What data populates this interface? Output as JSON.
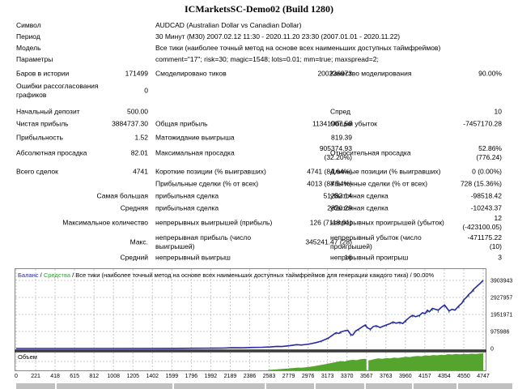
{
  "title": "ICMarketsSC-Demo02 (Build 1280)",
  "info_rows": [
    {
      "label": "Символ",
      "value": "AUDCAD (Australian Dollar vs Canadian Dollar)"
    },
    {
      "label": "Период",
      "value": "30 Минут (M30) 2007.02.12 11:30 - 2020.11.20 23:30 (2007.01.01 - 2020.11.22)"
    },
    {
      "label": "Модель",
      "value": "Все тики (наиболее точный метод на основе всех наименьших доступных таймфреймов)"
    },
    {
      "label": "Параметры",
      "value": "comment=\"17\"; risk=30; magic=1548; lots=0.01; mm=true; maxspread=2;"
    }
  ],
  "stats_sections": [
    [
      {
        "h": 14,
        "l1": "Баров в истории",
        "v1": "171499",
        "l2": "Смоделировано тиков",
        "v2": "200236973",
        "l3": "Качество моделирования",
        "v3": "90.00%"
      },
      {
        "h": 28,
        "l1": "Ошибки рассогласования\nграфиков",
        "v1": "0",
        "l2": "",
        "v2": "",
        "l3": "",
        "v3": ""
      }
    ],
    [
      {
        "h": 14,
        "l1": "Начальный депозит",
        "v1": "500.00",
        "l2": "",
        "v2": "",
        "l3": "Спред",
        "v3": "10"
      },
      {
        "h": 16,
        "l1": "Чистая прибыль",
        "v1": "3884737.30",
        "l2": "Общая прибыль",
        "v2": "11341907.58",
        "l3": "Общий убыток",
        "v3": "-7457170.28"
      },
      {
        "h": 17,
        "l1": "Прибыльность",
        "v1": "1.52",
        "l2": "Матожидание выигрыша",
        "v2": "819.39",
        "l3": "",
        "v3": ""
      },
      {
        "h": 22,
        "l1": "Абсолютная просадка",
        "v1": "82.01",
        "l2": "Максимальная просадка",
        "v2": "905374.93\n(32.20%)",
        "l3": "Относительная просадка",
        "v3": "52.86%\n(776.24)"
      }
    ],
    [
      {
        "h": 14,
        "l1": "Всего сделок",
        "v1": "4741",
        "l2": "Короткие позиции (% выигравших)",
        "v2": "4741 (84.64%)",
        "l3": "Длинные позиции (% выигравших)",
        "v3": "0 (0.00%)"
      },
      {
        "h": 15,
        "l1": "",
        "v1": "",
        "l2": "Прибыльные сделки (% от всех)",
        "v2": "4013 (84.64%)",
        "l3": "Убыточные сделки (% от всех)",
        "v3": "728 (15.36%)"
      },
      {
        "h": 15,
        "l1": "Самая большая",
        "l1r": true,
        "v1": "",
        "l2": "прибыльная сделка",
        "v2": "51283.14",
        "l3": "убыточная сделка",
        "v3": "-98518.42"
      },
      {
        "h": 15,
        "l1": "Средняя",
        "l1r": true,
        "v1": "",
        "l2": "прибыльная сделка",
        "v2": "2826.29",
        "l3": "убыточная сделка",
        "v3": "-10243.37"
      },
      {
        "h": 22,
        "l1": "Максимальное количество",
        "l1r": true,
        "v1": "",
        "l2": "непрерывных выигрышей (прибыль)",
        "v2": "126 (7118.91)",
        "l3": "непрерывных проигрышей (убыток)",
        "v3": "12\n(-423100.05)"
      },
      {
        "h": 25,
        "l1": "Макс.",
        "l1r": true,
        "v1": "",
        "l2": "непрерывная прибыль (число выигрышей)",
        "v2": "345241.47 (28)",
        "l3": "непрерывный убыток (число проигрышей)",
        "v3": "-471175.22\n(10)"
      },
      {
        "h": 14,
        "l1": "Средний",
        "l1r": true,
        "v1": "",
        "l2": "непрерывный выигрыш",
        "v2": "16",
        "l3": "непрерывный проигрыш",
        "v3": "3"
      }
    ]
  ],
  "chart_data": {
    "type": "line",
    "legend": {
      "balance_label": "Баланс",
      "equity_label": "Средства",
      "separator": " / ",
      "suffix": "Все тики (наиболее точный метод на основе всех наименьших доступных таймфреймов для генерации каждого тика) / 90.00%"
    },
    "volume_label": "Объем",
    "x_range": [
      0,
      4747
    ],
    "y_range": [
      0,
      4550000
    ],
    "x_ticks": [
      "0",
      "221",
      "418",
      "615",
      "812",
      "1008",
      "1205",
      "1402",
      "1599",
      "1796",
      "1992",
      "2189",
      "2386",
      "2583",
      "2779",
      "2976",
      "3173",
      "3370",
      "3567",
      "3763",
      "3960",
      "4157",
      "4354",
      "4550",
      "4747"
    ],
    "y_ticks": [
      "3903943",
      "2927957",
      "1951971",
      "975986",
      "0"
    ],
    "y_tick_values": [
      3903943,
      2927957,
      1951971,
      975986,
      0
    ],
    "balance_series": [
      [
        0,
        500
      ],
      [
        1000,
        2000
      ],
      [
        1600,
        5000
      ],
      [
        1800,
        15000
      ],
      [
        2000,
        20000
      ],
      [
        2100,
        25000
      ],
      [
        2200,
        42000
      ],
      [
        2300,
        36000
      ],
      [
        2400,
        60000
      ],
      [
        2500,
        72000
      ],
      [
        2583,
        90000
      ],
      [
        2650,
        122000
      ],
      [
        2700,
        110000
      ],
      [
        2779,
        160000
      ],
      [
        2850,
        220000
      ],
      [
        2900,
        200000
      ],
      [
        2950,
        232000
      ],
      [
        2976,
        250000
      ],
      [
        3050,
        340000
      ],
      [
        3100,
        420000
      ],
      [
        3150,
        540000
      ],
      [
        3173,
        600000
      ],
      [
        3220,
        780000
      ],
      [
        3250,
        900000
      ],
      [
        3280,
        860000
      ],
      [
        3300,
        950000
      ],
      [
        3330,
        1000000
      ],
      [
        3370,
        1050000
      ],
      [
        3400,
        800000
      ],
      [
        3420,
        760000
      ],
      [
        3450,
        1000000
      ],
      [
        3480,
        1100000
      ],
      [
        3520,
        1250000
      ],
      [
        3550,
        1350000
      ],
      [
        3567,
        1200000
      ],
      [
        3600,
        1100000
      ],
      [
        3630,
        1260000
      ],
      [
        3660,
        1300000
      ],
      [
        3700,
        1200000
      ],
      [
        3730,
        1280000
      ],
      [
        3763,
        1350000
      ],
      [
        3800,
        1420000
      ],
      [
        3830,
        1520000
      ],
      [
        3860,
        1450000
      ],
      [
        3900,
        1500000
      ],
      [
        3930,
        1430000
      ],
      [
        3960,
        1600000
      ],
      [
        4000,
        1800000
      ],
      [
        4030,
        1900000
      ],
      [
        4060,
        1820000
      ],
      [
        4100,
        1900000
      ],
      [
        4130,
        2050000
      ],
      [
        4157,
        2000000
      ],
      [
        4180,
        2200000
      ],
      [
        4200,
        2100000
      ],
      [
        4230,
        2300000
      ],
      [
        4260,
        2250000
      ],
      [
        4290,
        2200000
      ],
      [
        4320,
        2350000
      ],
      [
        4354,
        2500000
      ],
      [
        4380,
        2300000
      ],
      [
        4400,
        2150000
      ],
      [
        4430,
        2250000
      ],
      [
        4460,
        2200000
      ],
      [
        4500,
        2450000
      ],
      [
        4530,
        2600000
      ],
      [
        4550,
        2800000
      ],
      [
        4580,
        2950000
      ],
      [
        4600,
        3100000
      ],
      [
        4630,
        3250000
      ],
      [
        4650,
        3400000
      ],
      [
        4680,
        3550000
      ],
      [
        4710,
        3700000
      ],
      [
        4747,
        3903943
      ]
    ],
    "equity_spikes": [
      [
        2850,
        180000
      ],
      [
        3100,
        350000
      ],
      [
        3173,
        520000
      ],
      [
        3250,
        800000
      ],
      [
        3300,
        850000
      ],
      [
        3400,
        690000
      ],
      [
        3480,
        1000000
      ],
      [
        3550,
        1250000
      ],
      [
        3600,
        1000000
      ],
      [
        3660,
        1190000
      ],
      [
        3763,
        1250000
      ],
      [
        3830,
        1400000
      ],
      [
        3900,
        1380000
      ],
      [
        3960,
        1480000
      ],
      [
        4030,
        1780000
      ],
      [
        4100,
        1790000
      ],
      [
        4180,
        2050000
      ],
      [
        4230,
        2150000
      ],
      [
        4290,
        2050000
      ],
      [
        4354,
        2340000
      ],
      [
        4400,
        2040000
      ],
      [
        4500,
        2300000
      ],
      [
        4550,
        2650000
      ],
      [
        4600,
        2950000
      ],
      [
        4650,
        3240000
      ]
    ],
    "volume_series": [
      [
        2560,
        2
      ],
      [
        2583,
        4
      ],
      [
        2620,
        5
      ],
      [
        2650,
        6
      ],
      [
        2700,
        8
      ],
      [
        2750,
        10
      ],
      [
        2779,
        12
      ],
      [
        2820,
        14
      ],
      [
        2860,
        16
      ],
      [
        2900,
        15
      ],
      [
        2940,
        18
      ],
      [
        2976,
        20
      ],
      [
        3020,
        24
      ],
      [
        3060,
        28
      ],
      [
        3100,
        32
      ],
      [
        3140,
        36
      ],
      [
        3173,
        40
      ],
      [
        3220,
        45
      ],
      [
        3260,
        50
      ],
      [
        3300,
        55
      ],
      [
        3340,
        52
      ],
      [
        3370,
        58
      ],
      [
        3420,
        62
      ],
      [
        3460,
        60
      ],
      [
        3500,
        65
      ],
      [
        3540,
        68
      ],
      [
        3560,
        66
      ],
      [
        3567,
        0
      ],
      [
        3580,
        58
      ],
      [
        3600,
        60
      ],
      [
        3640,
        66
      ],
      [
        3680,
        70
      ],
      [
        3720,
        68
      ],
      [
        3763,
        72
      ],
      [
        3800,
        70
      ],
      [
        3840,
        75
      ],
      [
        3880,
        73
      ],
      [
        3920,
        76
      ],
      [
        3960,
        80
      ],
      [
        4000,
        78
      ],
      [
        4040,
        82
      ],
      [
        4080,
        85
      ],
      [
        4120,
        83
      ],
      [
        4157,
        88
      ],
      [
        4200,
        86
      ],
      [
        4240,
        90
      ],
      [
        4280,
        88
      ],
      [
        4320,
        92
      ],
      [
        4354,
        90
      ],
      [
        4390,
        95
      ],
      [
        4430,
        93
      ],
      [
        4470,
        96
      ],
      [
        4510,
        94
      ],
      [
        4550,
        97
      ],
      [
        4590,
        95
      ],
      [
        4630,
        98
      ],
      [
        4670,
        96
      ],
      [
        4710,
        99
      ],
      [
        4747,
        100
      ]
    ],
    "colors": {
      "balance": "#2929a3",
      "equity": "#2fa32f",
      "volume": "#55a42e",
      "grid": "#c8c8c8",
      "panel_border": "#888888",
      "separator_band": "#3c3c3c"
    }
  }
}
